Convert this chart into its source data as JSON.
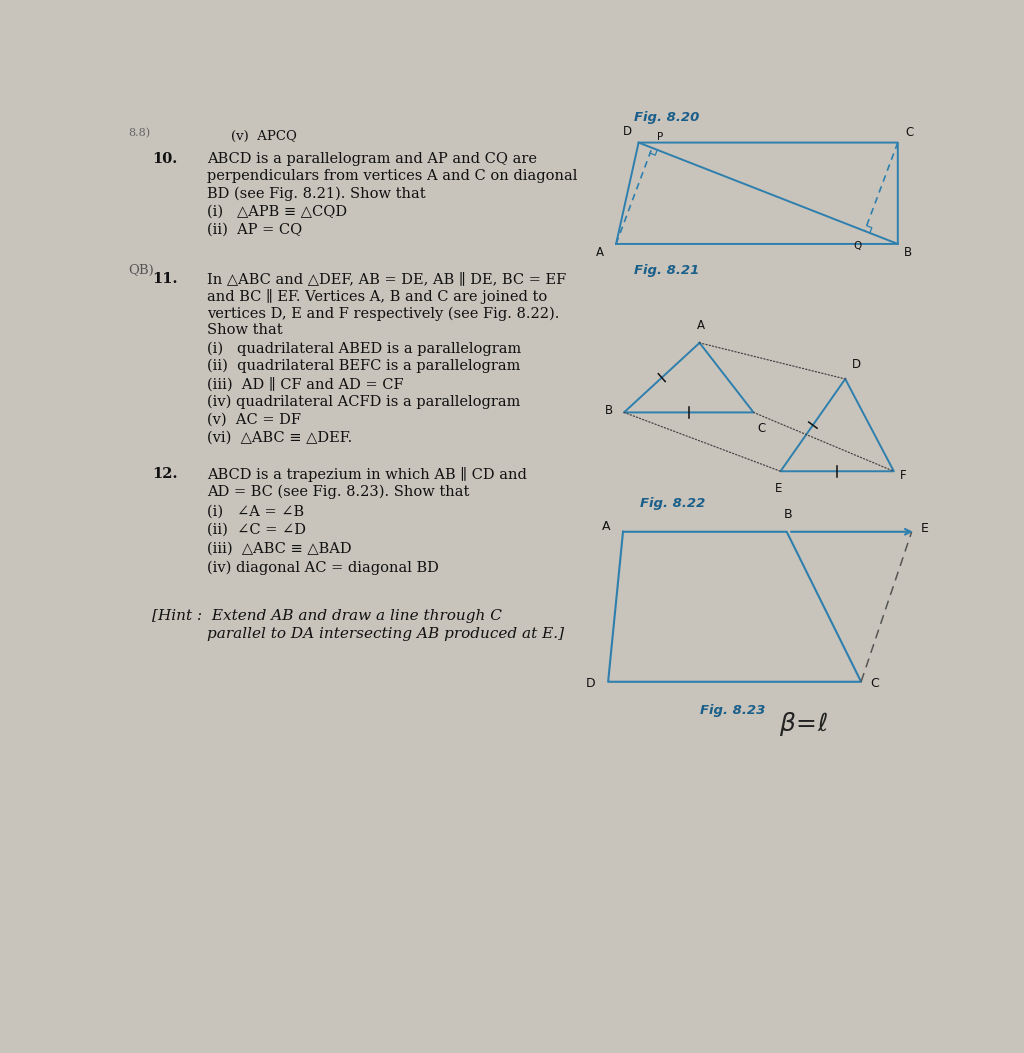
{
  "bg_color": "#c8c4bc",
  "fig_color": "#2e7fad",
  "fig_label_color": "#1a5f8a",
  "text_color": "#111111",
  "fig821": {
    "label": "Fig. 8.21",
    "title_label": "Fig. 8.20",
    "ox": 0.615,
    "oy": 0.855,
    "sx": 0.355,
    "sy": 0.125
  },
  "fig822": {
    "label": "Fig. 8.22",
    "ox": 0.625,
    "oy": 0.568,
    "sx": 0.34,
    "sy": 0.165
  },
  "fig823": {
    "label": "Fig. 8.23",
    "ox": 0.605,
    "oy": 0.315,
    "sx": 0.375,
    "sy": 0.185
  }
}
